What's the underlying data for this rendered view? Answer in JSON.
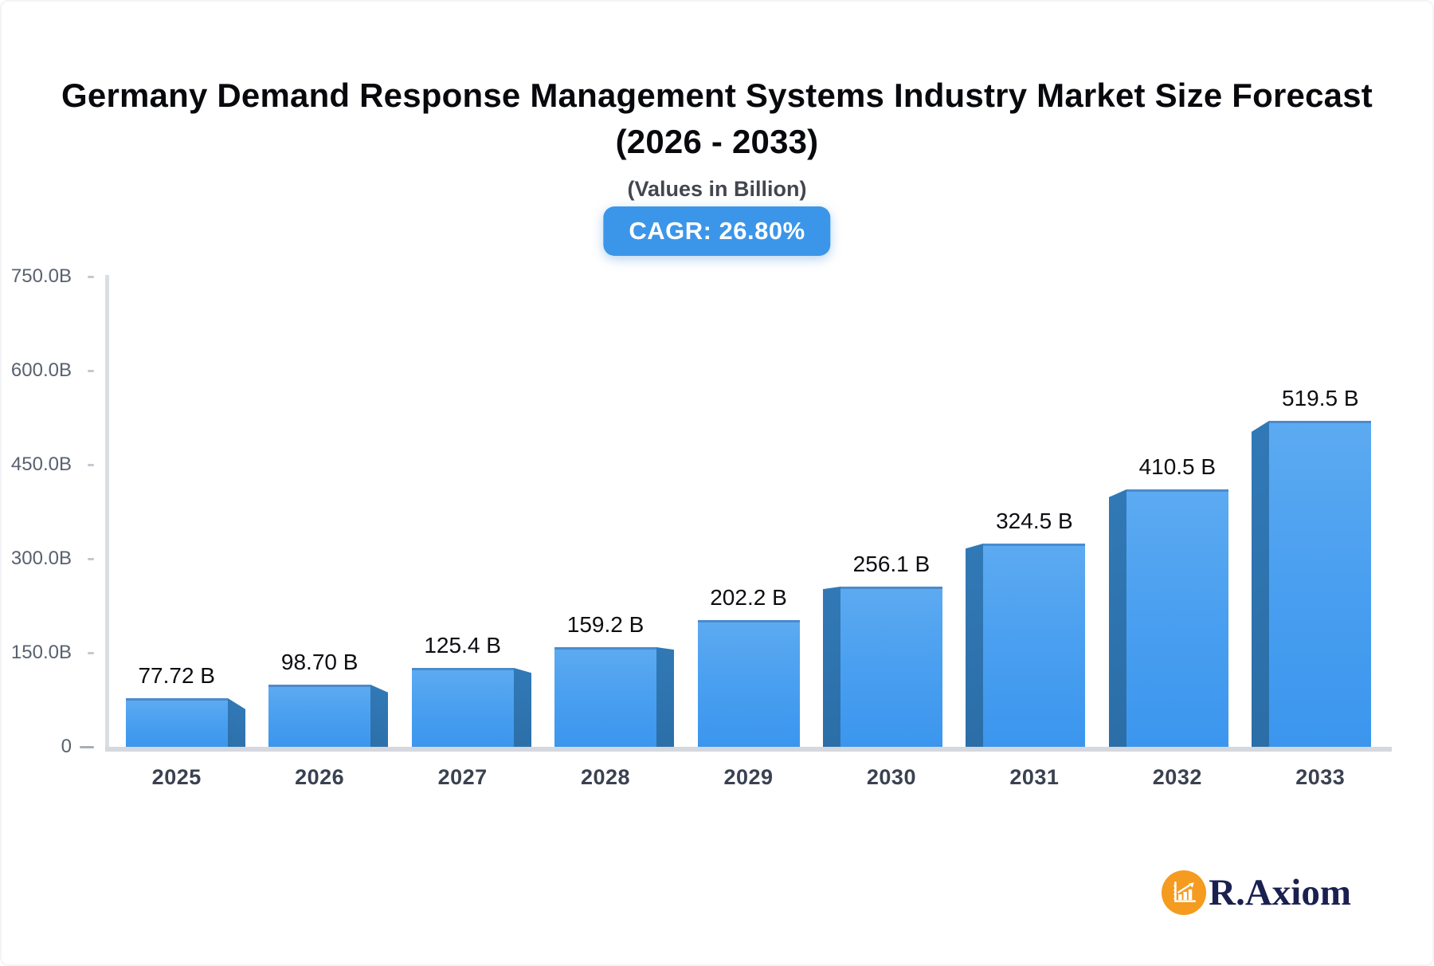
{
  "colors": {
    "accent": "#3b96e9",
    "bar_face_top": "#5caaf1",
    "bar_face_mid": "#4ba0f0",
    "bar_face_bottom": "#3b96ee",
    "bar_side": "#3179b6",
    "bar_side_dark": "#2b6da6",
    "axis_line": "#dadde2",
    "logo_orange": "#f49b20",
    "logo_navy": "#1a2150"
  },
  "header": {
    "title_line1": "Germany Demand Response Management Systems Industry Market Size Forecast",
    "title_line2": "(2026 - 2033)",
    "subtitle": "(Values in Billion)",
    "cagr_label": "CAGR: 26.80%"
  },
  "chart_data": {
    "type": "bar",
    "title": "Germany Demand Response Management Systems Industry Market Size Forecast (2026 - 2033)",
    "subtitle": "(Values in Billion)",
    "cagr": "26.80%",
    "categories": [
      "2025",
      "2026",
      "2027",
      "2028",
      "2029",
      "2030",
      "2031",
      "2032",
      "2033"
    ],
    "values": [
      77.72,
      98.7,
      125.4,
      159.2,
      202.2,
      256.1,
      324.5,
      410.5,
      519.5
    ],
    "value_labels": [
      "77.72 B",
      "98.70 B",
      "125.4 B",
      "159.2 B",
      "202.2 B",
      "256.1 B",
      "324.5 B",
      "410.5 B",
      "519.5 B"
    ],
    "ylim": [
      0,
      750
    ],
    "ytick_interval": 150,
    "ytick_labels": [
      "0",
      "150.0B",
      "300.0B",
      "450.0B",
      "600.0B",
      "750.0B"
    ],
    "xlabel": "",
    "ylabel": "",
    "grid": false,
    "legend": "none",
    "style": "3d-perspective-bars"
  },
  "logo": {
    "text": "R.Axiom",
    "icon": "bar-chart-growth-icon"
  }
}
